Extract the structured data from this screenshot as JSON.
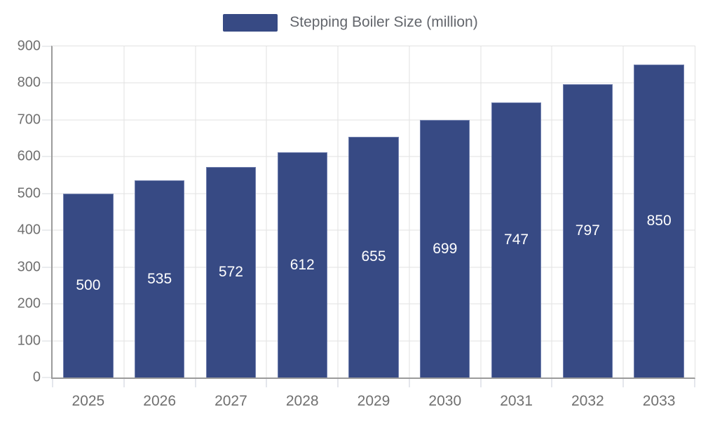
{
  "legend": {
    "label": "Stepping Boiler Size (million)",
    "swatch_color": "#374a84"
  },
  "chart_data": {
    "type": "bar",
    "title": "",
    "categories": [
      "2025",
      "2026",
      "2027",
      "2028",
      "2029",
      "2030",
      "2031",
      "2032",
      "2033"
    ],
    "series": [
      {
        "name": "Stepping Boiler Size (million)",
        "values": [
          500,
          535,
          572,
          612,
          655,
          699,
          747,
          797,
          850
        ]
      }
    ],
    "xlabel": "",
    "ylabel": "",
    "ylim": [
      0,
      900
    ],
    "yticks": [
      0,
      100,
      200,
      300,
      400,
      500,
      600,
      700,
      800,
      900
    ],
    "grid": true,
    "legend_position": "top",
    "value_labels": "inside-center",
    "bar_color": "#374a84",
    "value_label_color": "#ffffff",
    "grid_color": "#e2e2e2",
    "axis_line_color": "#9b9b9b",
    "axis_text_color": "#707070"
  }
}
